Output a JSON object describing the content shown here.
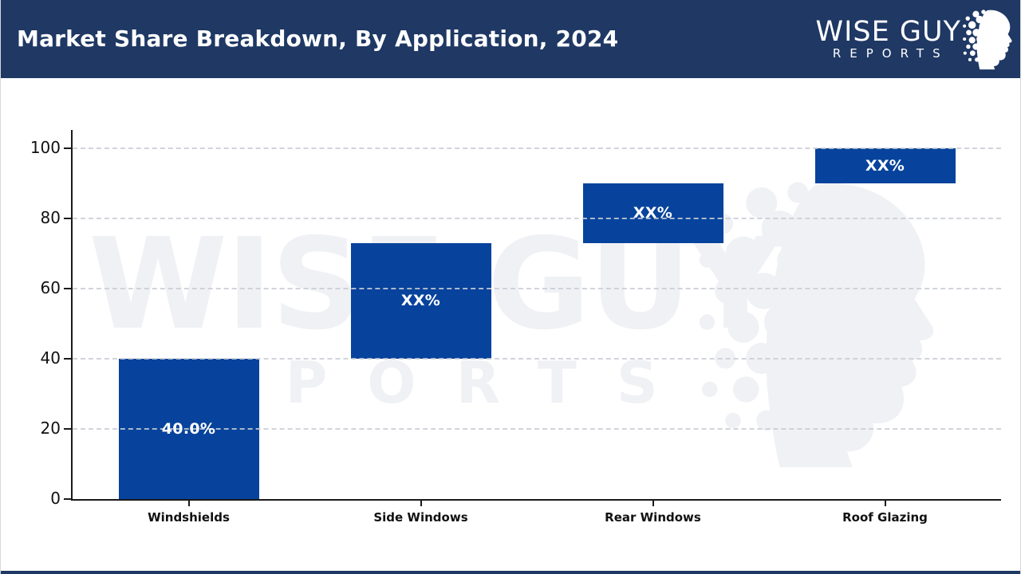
{
  "header": {
    "title": "Market Share Breakdown, By Application, 2024",
    "logo": {
      "line1": "WISE GUY",
      "line2": "REPORTS"
    }
  },
  "watermark": {
    "line1": "WISE GUY",
    "line2": "REPORTS"
  },
  "chart_data": {
    "type": "bar",
    "subtype": "waterfall",
    "title": "Market Share Breakdown, By Application, 2024",
    "categories": [
      "Windshields",
      "Side Windows",
      "Rear Windows",
      "Roof Glazing"
    ],
    "segments": [
      {
        "category": "Windshields",
        "start": 0,
        "end": 40,
        "label": "40.0%"
      },
      {
        "category": "Side Windows",
        "start": 40,
        "end": 73,
        "label": "XX%"
      },
      {
        "category": "Rear Windows",
        "start": 73,
        "end": 90,
        "label": "XX%"
      },
      {
        "category": "Roof Glazing",
        "start": 90,
        "end": 100,
        "label": "XX%"
      }
    ],
    "xlabel": "",
    "ylabel": "",
    "ylim": [
      0,
      100
    ],
    "yticks": [
      0,
      20,
      40,
      60,
      80,
      100
    ],
    "grid": "horizontal-dashed",
    "legend": "none",
    "bar_color": "#07439c",
    "bar_label_color": "#ffffff"
  },
  "colors": {
    "header_bg": "#1f3864",
    "accent_bar": "#1f3864",
    "watermark": "#f0f1f4",
    "gridline": "#d0d4da",
    "axis": "#1a1a1a"
  }
}
